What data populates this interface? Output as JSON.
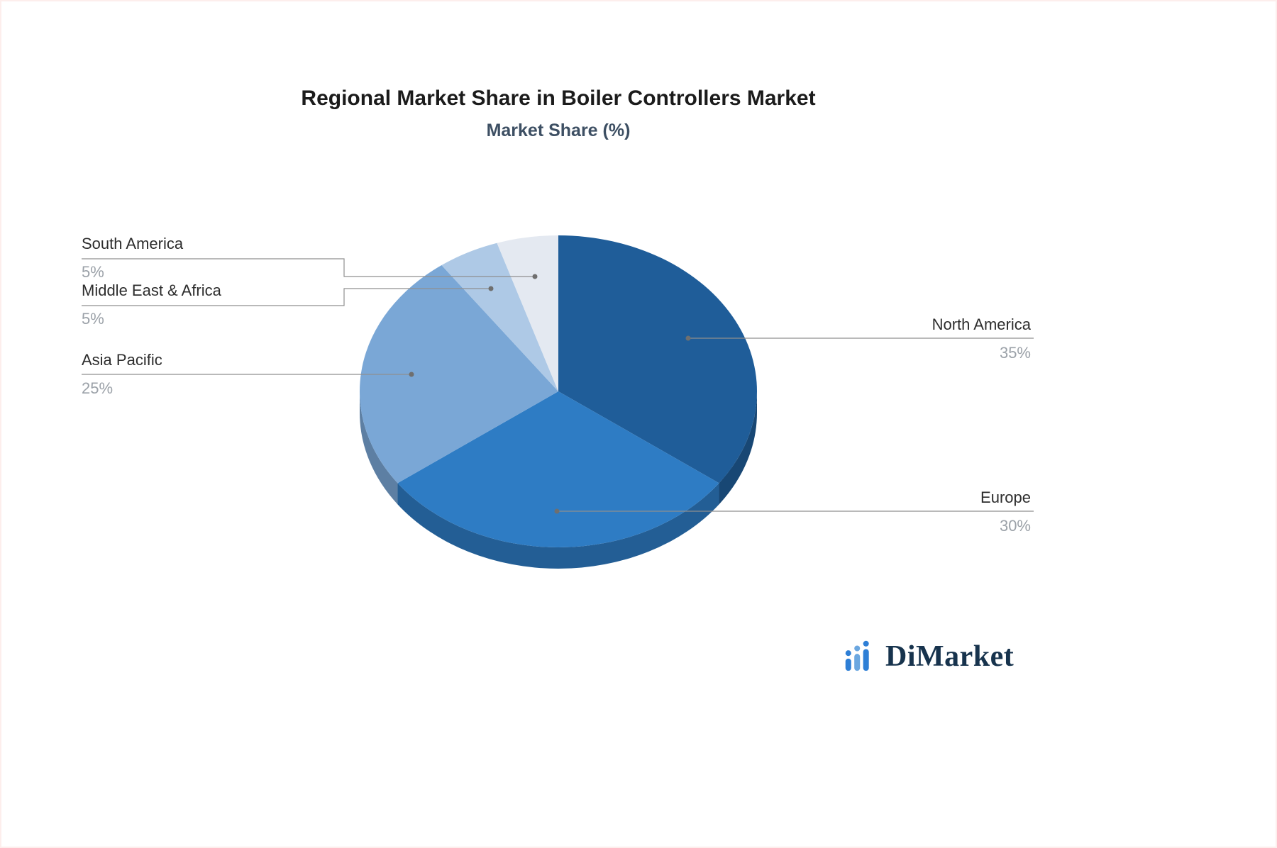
{
  "chart_data": {
    "type": "pie",
    "title": "Regional Market Share in Boiler Controllers Market",
    "subtitle": "Market Share (%)",
    "unit": "%",
    "labels": [
      "North America",
      "Europe",
      "Asia Pacific",
      "Middle East & Africa",
      "South America"
    ],
    "values": [
      35,
      30,
      25,
      5,
      5
    ],
    "value_labels": [
      "35%",
      "30%",
      "25%",
      "5%",
      "5%"
    ],
    "colors": [
      "#1f5d99",
      "#2e7cc4",
      "#7aa7d6",
      "#aec9e6",
      "#e4e9f1"
    ],
    "style": "3d",
    "start_angle_deg": 0,
    "direction": "clockwise",
    "legend_position": "none",
    "labels_style": "callout"
  },
  "brand": {
    "name": "DiMarket",
    "logo_icon": "rising-bars-icon",
    "icon_color": "#2e7fd6",
    "text_color": "#17334d"
  }
}
